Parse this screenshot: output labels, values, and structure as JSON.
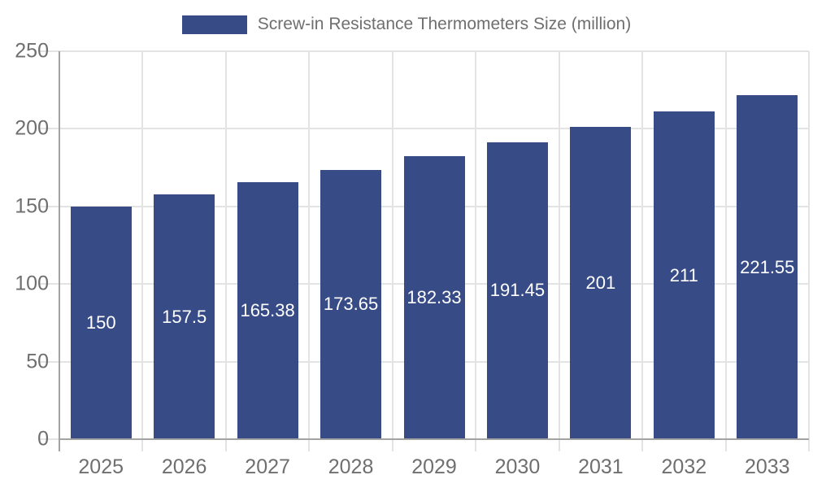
{
  "chart_data": {
    "type": "bar",
    "title": "",
    "legend": "Screw-in Resistance Thermometers Size (million)",
    "legend_position": "top",
    "categories": [
      "2025",
      "2026",
      "2027",
      "2028",
      "2029",
      "2030",
      "2031",
      "2032",
      "2033"
    ],
    "values": [
      150,
      157.5,
      165.38,
      173.65,
      182.33,
      191.45,
      201,
      211,
      221.55
    ],
    "xlabel": "",
    "ylabel": "",
    "ylim": [
      0,
      250
    ],
    "ytick_step": 50,
    "yticks": [
      0,
      50,
      100,
      150,
      200,
      250
    ],
    "grid": true,
    "bar_labels_inside": true,
    "colors": {
      "bar": "#374B86",
      "bar_label_text": "#ffffff",
      "axis_text": "#6f6f6f",
      "grid_line": "#e3e3e3",
      "axis_line": "#a3a3a3",
      "background": "#ffffff"
    }
  }
}
